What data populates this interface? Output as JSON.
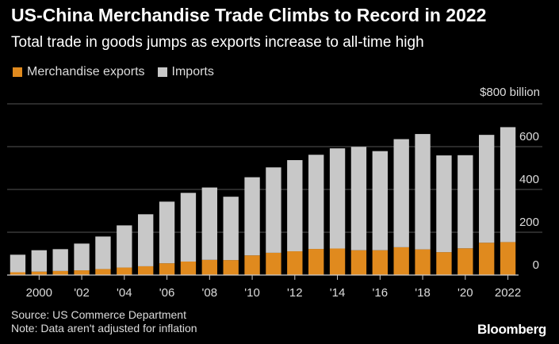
{
  "header": {
    "title": "US-China Merchandise Trade Climbs to Record in 2022",
    "subtitle": "Total trade in goods jumps as exports increase to all-time high"
  },
  "legend": {
    "exports_label": "Merchandise exports",
    "imports_label": "Imports"
  },
  "colors": {
    "exports": "#e08a1e",
    "imports": "#c8c8c8",
    "grid": "#555555",
    "axis": "#cfcfcf",
    "text": "#dcdcdc"
  },
  "footer": {
    "source": "Source: US Commerce Department",
    "note": "Note: Data aren't adjusted for inflation",
    "brand": "Bloomberg"
  },
  "chart_data": {
    "type": "bar",
    "stacked": true,
    "unit_label": "$800 billion",
    "x": [
      1999,
      2000,
      2001,
      2002,
      2003,
      2004,
      2005,
      2006,
      2007,
      2008,
      2009,
      2010,
      2011,
      2012,
      2013,
      2014,
      2015,
      2016,
      2017,
      2018,
      2019,
      2020,
      2021,
      2022
    ],
    "x_tick_labels": [
      {
        "year": 2000,
        "label": "2000"
      },
      {
        "year": 2002,
        "label": "'02"
      },
      {
        "year": 2004,
        "label": "'04"
      },
      {
        "year": 2006,
        "label": "'06"
      },
      {
        "year": 2008,
        "label": "'08"
      },
      {
        "year": 2010,
        "label": "'10"
      },
      {
        "year": 2012,
        "label": "'12"
      },
      {
        "year": 2014,
        "label": "'14"
      },
      {
        "year": 2016,
        "label": "'16"
      },
      {
        "year": 2018,
        "label": "'18"
      },
      {
        "year": 2020,
        "label": "'20"
      },
      {
        "year": 2022,
        "label": "2022"
      }
    ],
    "series": [
      {
        "name": "Merchandise exports",
        "values": [
          13,
          16,
          19,
          22,
          28,
          35,
          41,
          55,
          63,
          71,
          70,
          92,
          104,
          111,
          122,
          124,
          116,
          116,
          130,
          120,
          107,
          125,
          151,
          154
        ]
      },
      {
        "name": "Imports",
        "values": [
          82,
          100,
          102,
          125,
          152,
          197,
          243,
          288,
          321,
          338,
          296,
          365,
          399,
          426,
          440,
          468,
          483,
          463,
          505,
          539,
          452,
          435,
          504,
          537
        ]
      }
    ],
    "ylim": [
      0,
      800
    ],
    "y_ticks": [
      0,
      200,
      400,
      600
    ],
    "grid": true
  }
}
